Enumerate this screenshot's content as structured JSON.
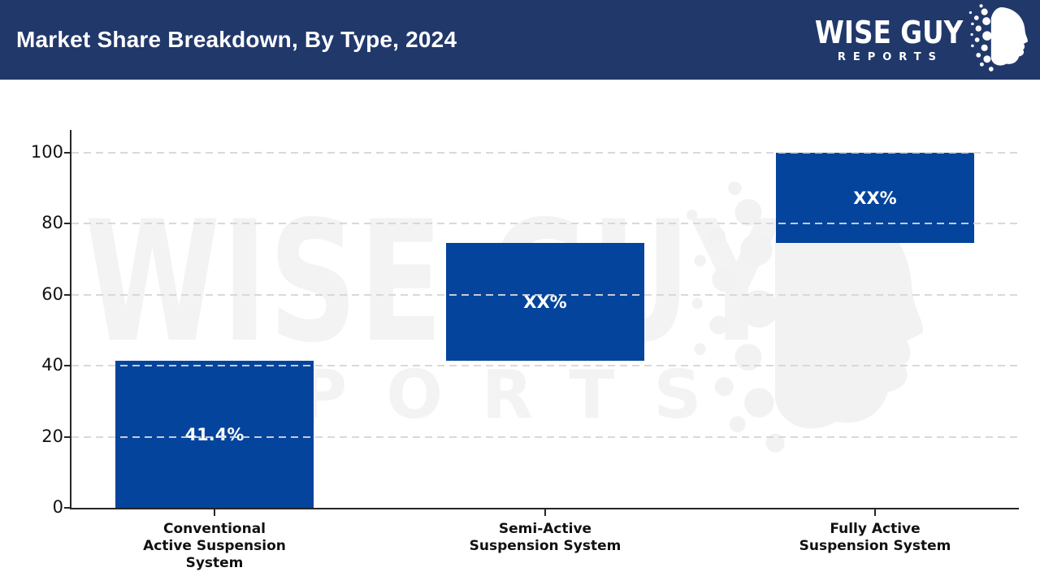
{
  "header": {
    "title": "Market Share Breakdown, By Type, 2024",
    "bg_color": "#21386b",
    "logo": {
      "line1": "WISE GUY",
      "line2": "REPORTS"
    }
  },
  "watermark": {
    "line1": "WISE GUY",
    "line2": "REPORTS"
  },
  "chart_data": {
    "type": "bar",
    "subtype": "waterfall-stepped",
    "title": "Market Share Breakdown, By Type, 2024",
    "categories": [
      "Conventional Active Suspension System",
      "Semi-Active Suspension System",
      "Fully Active Suspension System"
    ],
    "category_lines": [
      [
        "Conventional",
        "Active Suspension",
        "System"
      ],
      [
        "Semi-Active",
        "Suspension System"
      ],
      [
        "Fully Active",
        "Suspension System"
      ]
    ],
    "bars": [
      {
        "start": 0,
        "end": 41.4,
        "label": "41.4%"
      },
      {
        "start": 41.4,
        "end": 74.5,
        "label": "XX%"
      },
      {
        "start": 74.5,
        "end": 100,
        "label": "XX%"
      }
    ],
    "xlabel": "",
    "ylabel": "",
    "ylim": [
      0,
      100
    ],
    "yticks": [
      0,
      20,
      40,
      60,
      80,
      100
    ],
    "grid": "horizontal-dashed",
    "legend": "none",
    "bar_color": "#04449c",
    "bar_label_color": "#ffffff",
    "grid_color": "#d9d9d9",
    "axis_color": "#262626"
  }
}
